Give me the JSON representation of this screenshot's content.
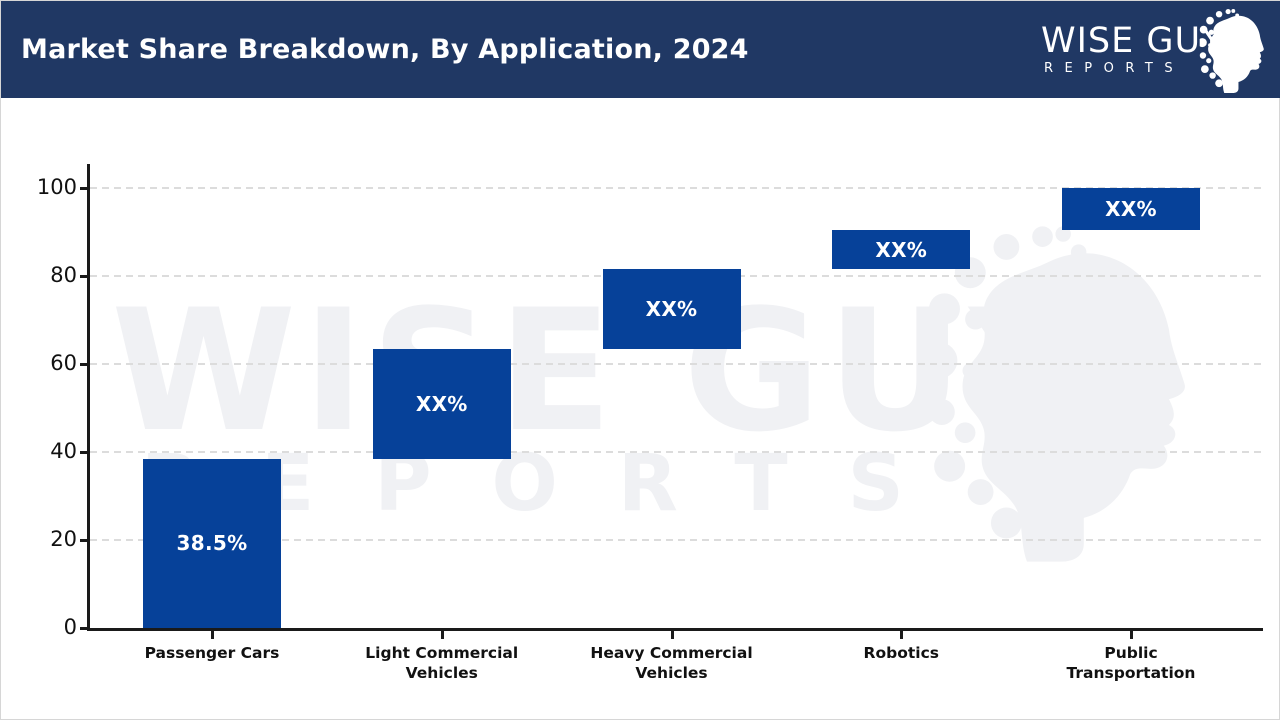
{
  "header": {
    "title": "Market Share Breakdown, By Application, 2024",
    "logo": {
      "line1": "WISE GUY",
      "line2": "REPORTS"
    }
  },
  "watermark": {
    "line1": "WISE GUY",
    "line2": "REPORTS"
  },
  "colors": {
    "header_bg": "#203864",
    "bar": "#064199",
    "bar_label": "#ffffff",
    "watermark": "#f0f1f4",
    "grid": "#dcdcdc",
    "axis": "#1a1a1a"
  },
  "chart_data": {
    "type": "bar",
    "subtype": "waterfall",
    "title": "Market Share Breakdown, By Application, 2024",
    "categories": [
      "Passenger Cars",
      "Light Commercial Vehicles",
      "Heavy Commercial Vehicles",
      "Robotics",
      "Public Transportation"
    ],
    "category_label_lines": [
      [
        "Passenger Cars"
      ],
      [
        "Light Commercial",
        "Vehicles"
      ],
      [
        "Heavy Commercial",
        "Vehicles"
      ],
      [
        "Robotics"
      ],
      [
        "Public",
        "Transportation"
      ]
    ],
    "segments": [
      {
        "category": "Passenger Cars",
        "start": 0,
        "end": 38.5,
        "label": "38.5%"
      },
      {
        "category": "Light Commercial Vehicles",
        "start": 38.5,
        "end": 63.5,
        "label": "XX%"
      },
      {
        "category": "Heavy Commercial Vehicles",
        "start": 63.5,
        "end": 81.5,
        "label": "XX%"
      },
      {
        "category": "Robotics",
        "start": 81.5,
        "end": 90.5,
        "label": "XX%"
      },
      {
        "category": "Public Transportation",
        "start": 90.5,
        "end": 100,
        "label": "XX%"
      }
    ],
    "xlabel": "",
    "ylabel": "",
    "y_ticks": [
      0,
      20,
      40,
      60,
      80,
      100
    ],
    "ylim": [
      0,
      105
    ],
    "grid": "horizontal-dashed",
    "legend": "none",
    "bar_value_labels_inside": true
  }
}
